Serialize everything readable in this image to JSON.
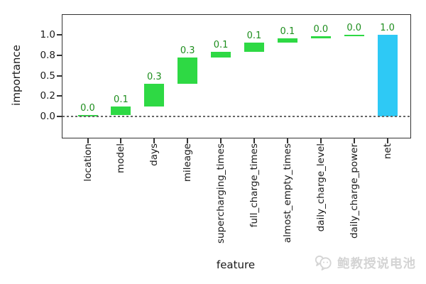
{
  "chart_data": {
    "type": "bar",
    "subtype": "waterfall",
    "title": "",
    "xlabel": "feature",
    "ylabel": "importance",
    "ylim": [
      -0.25,
      1.25
    ],
    "grid": false,
    "legend": null,
    "zero_line": {
      "value": 0.0,
      "style": "dashed"
    },
    "yticks": [
      {
        "value": 1.0,
        "label": "1.0"
      },
      {
        "value": 0.75,
        "label": "0.8"
      },
      {
        "value": 0.5,
        "label": "0.5"
      },
      {
        "value": 0.25,
        "label": "0.2"
      },
      {
        "value": 0.0,
        "label": "0.0"
      }
    ],
    "categories": [
      "location",
      "model",
      "days",
      "mileage",
      "supercharging_times",
      "full_charge_times",
      "almost_empty_times",
      "daily_charge_level",
      "daily_charge_power",
      "net"
    ],
    "bars": [
      {
        "category": "location",
        "label": "0.0",
        "start": 0.0,
        "end": 0.02,
        "color_key": "increment"
      },
      {
        "category": "model",
        "label": "0.1",
        "start": 0.02,
        "end": 0.12,
        "color_key": "increment"
      },
      {
        "category": "days",
        "label": "0.3",
        "start": 0.12,
        "end": 0.4,
        "color_key": "increment"
      },
      {
        "category": "mileage",
        "label": "0.3",
        "start": 0.4,
        "end": 0.72,
        "color_key": "increment"
      },
      {
        "category": "supercharging_times",
        "label": "0.1",
        "start": 0.72,
        "end": 0.79,
        "color_key": "increment"
      },
      {
        "category": "full_charge_times",
        "label": "0.1",
        "start": 0.79,
        "end": 0.9,
        "color_key": "increment"
      },
      {
        "category": "almost_empty_times",
        "label": "0.1",
        "start": 0.9,
        "end": 0.955,
        "color_key": "increment"
      },
      {
        "category": "daily_charge_level",
        "label": "0.0",
        "start": 0.955,
        "end": 0.985,
        "color_key": "increment"
      },
      {
        "category": "daily_charge_power",
        "label": "0.0",
        "start": 0.985,
        "end": 1.0,
        "color_key": "increment"
      },
      {
        "category": "net",
        "label": "1.0",
        "start": 0.0,
        "end": 1.0,
        "color_key": "net"
      }
    ],
    "colors": {
      "increment": "#2ed944",
      "net": "#2ec9f5",
      "bar_label": "#1e8e1e",
      "axis_text": "#1a1a1a",
      "frame": "#333333",
      "zero_line": "#666666"
    }
  },
  "watermark": {
    "icon": "wechat-bubbles-icon",
    "text": "鲍教授说电池",
    "color": "#d4d4d4"
  }
}
